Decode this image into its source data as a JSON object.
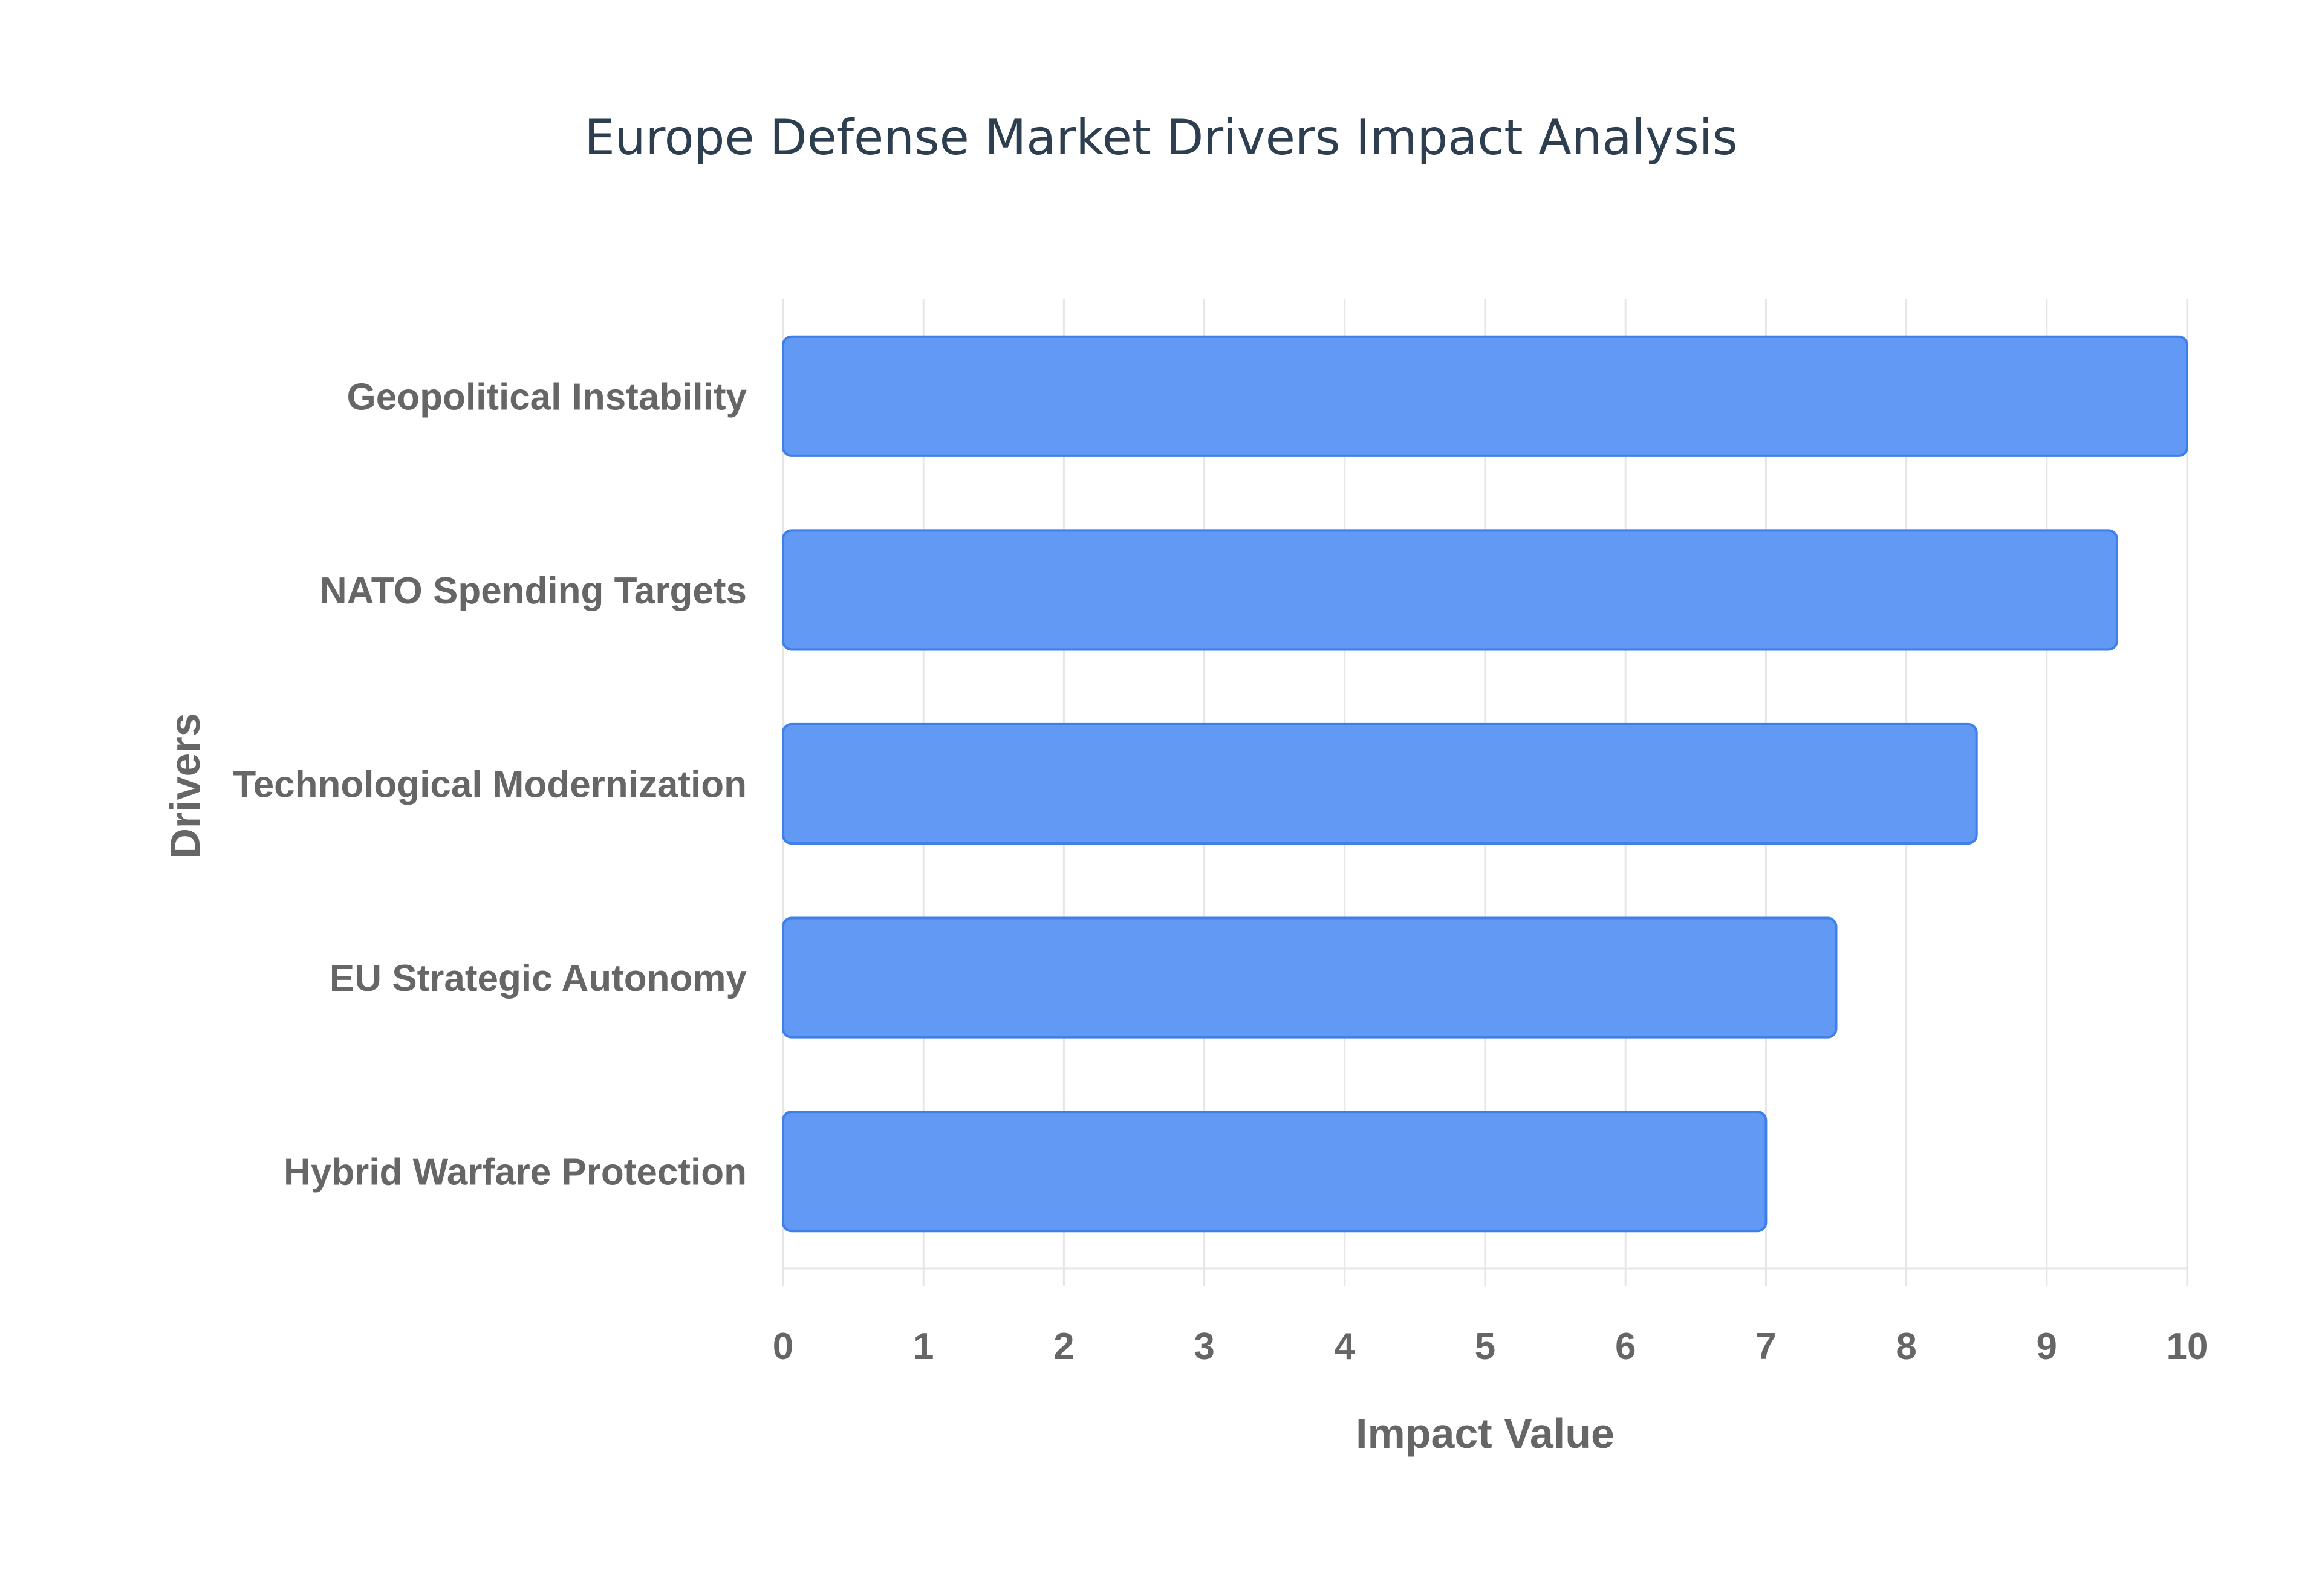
{
  "chart_data": {
    "type": "bar",
    "orientation": "horizontal",
    "title": "Europe Defense Market Drivers Impact Analysis",
    "xlabel": "Impact Value",
    "ylabel": "Drivers",
    "categories": [
      "Geopolitical Instability",
      "NATO Spending Targets",
      "Technological Modernization",
      "EU Strategic Autonomy",
      "Hybrid Warfare Protection"
    ],
    "values": [
      10,
      9.5,
      8.5,
      7.5,
      7
    ],
    "xlim": [
      0,
      10
    ],
    "xticks": [
      "0",
      "1",
      "2",
      "3",
      "4",
      "5",
      "6",
      "7",
      "8",
      "9",
      "10"
    ],
    "grid": true,
    "legend": "none",
    "colors": {
      "bar_fill": "#6199f5",
      "bar_stroke": "#3f7fe8",
      "grid": "#e6e6e6",
      "axis_text": "#666666",
      "title_text": "#2c3e50"
    }
  }
}
